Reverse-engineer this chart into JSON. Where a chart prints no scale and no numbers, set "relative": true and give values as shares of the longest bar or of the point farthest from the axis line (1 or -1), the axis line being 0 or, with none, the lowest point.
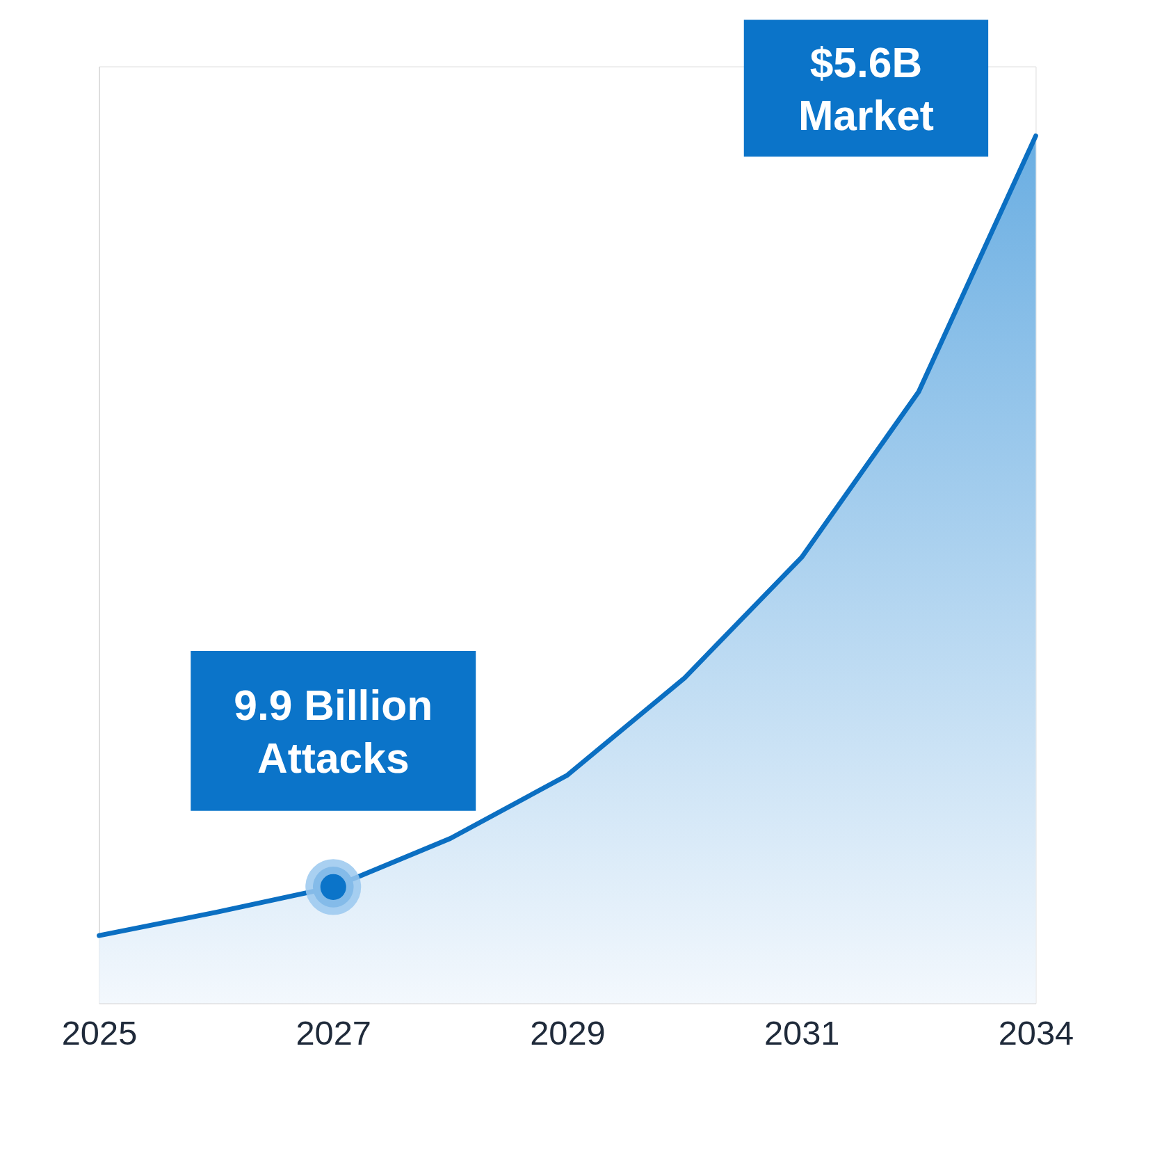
{
  "chart_data": {
    "type": "area",
    "relative": true,
    "categories": [
      "2025",
      null,
      "2027",
      null,
      "2029",
      null,
      "2031",
      null,
      "2034"
    ],
    "series": [
      {
        "color": "#0b6fc2",
        "values": [
          0.078,
          0.105,
          0.134,
          0.19,
          0.263,
          0.375,
          0.514,
          0.705,
          1.0
        ]
      },
      {
        "type": "scatter",
        "color": "#0b74c9",
        "values": [
          null,
          null,
          0.134,
          null,
          null,
          null,
          null,
          null,
          null
        ]
      }
    ],
    "annotations": [
      {
        "text": "9.9 Billion Attacks",
        "x": "2027",
        "y": 0.134
      },
      {
        "text": "$5.6B Market",
        "x": "2034",
        "y": 1.0
      }
    ]
  }
}
